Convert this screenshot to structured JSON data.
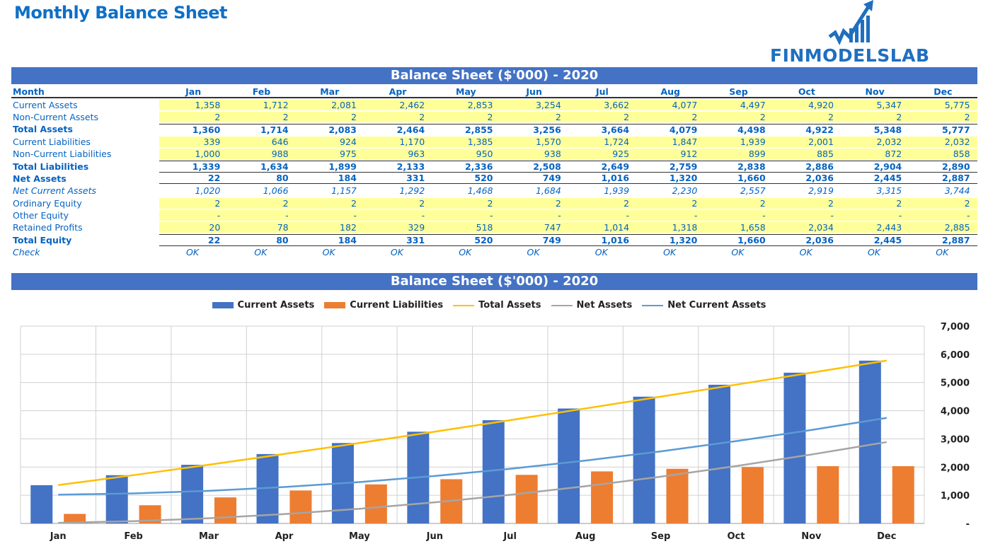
{
  "page": {
    "title": "Monthly Balance Sheet",
    "logo_text": "FINMODELSLAB"
  },
  "table": {
    "title": "Balance Sheet ($'000) - 2020",
    "header_label": "Month",
    "months": [
      "Jan",
      "Feb",
      "Mar",
      "Apr",
      "May",
      "Jun",
      "Jul",
      "Aug",
      "Sep",
      "Oct",
      "Nov",
      "Dec"
    ],
    "rows": [
      {
        "label": "Current Assets",
        "style": "yel",
        "values": [
          "1,358",
          "1,712",
          "2,081",
          "2,462",
          "2,853",
          "3,254",
          "3,662",
          "4,077",
          "4,497",
          "4,920",
          "5,347",
          "5,775"
        ]
      },
      {
        "label": "Non-Current Assets",
        "style": "yel",
        "values": [
          "2",
          "2",
          "2",
          "2",
          "2",
          "2",
          "2",
          "2",
          "2",
          "2",
          "2",
          "2"
        ]
      },
      {
        "label": "Total Assets",
        "style": "bold topb",
        "values": [
          "1,360",
          "1,714",
          "2,083",
          "2,464",
          "2,855",
          "3,256",
          "3,664",
          "4,079",
          "4,498",
          "4,922",
          "5,348",
          "5,777"
        ]
      },
      {
        "label": "Current Liabilities",
        "style": "yel",
        "values": [
          "339",
          "646",
          "924",
          "1,170",
          "1,385",
          "1,570",
          "1,724",
          "1,847",
          "1,939",
          "2,001",
          "2,032",
          "2,032"
        ]
      },
      {
        "label": "Non-Current Liabilities",
        "style": "yel",
        "values": [
          "1,000",
          "988",
          "975",
          "963",
          "950",
          "938",
          "925",
          "912",
          "899",
          "885",
          "872",
          "858"
        ]
      },
      {
        "label": "Total Liabilities",
        "style": "bold topb botb",
        "values": [
          "1,339",
          "1,634",
          "1,899",
          "2,133",
          "2,336",
          "2,508",
          "2,649",
          "2,759",
          "2,838",
          "2,886",
          "2,904",
          "2,890"
        ]
      },
      {
        "label": "Net Assets",
        "style": "bold botb",
        "values": [
          "22",
          "80",
          "184",
          "331",
          "520",
          "749",
          "1,016",
          "1,320",
          "1,660",
          "2,036",
          "2,445",
          "2,887"
        ]
      },
      {
        "label": "Net Current Assets",
        "style": "ital",
        "values": [
          "1,020",
          "1,066",
          "1,157",
          "1,292",
          "1,468",
          "1,684",
          "1,939",
          "2,230",
          "2,557",
          "2,919",
          "3,315",
          "3,744"
        ]
      },
      {
        "label": "Ordinary Equity",
        "style": "yel",
        "values": [
          "2",
          "2",
          "2",
          "2",
          "2",
          "2",
          "2",
          "2",
          "2",
          "2",
          "2",
          "2"
        ]
      },
      {
        "label": "Other Equity",
        "style": "yel",
        "values": [
          "-",
          "-",
          "-",
          "-",
          "-",
          "-",
          "-",
          "-",
          "-",
          "-",
          "-",
          "-"
        ]
      },
      {
        "label": "Retained Profits",
        "style": "yel",
        "values": [
          "20",
          "78",
          "182",
          "329",
          "518",
          "747",
          "1,014",
          "1,318",
          "1,658",
          "2,034",
          "2,443",
          "2,885"
        ]
      },
      {
        "label": "Total Equity",
        "style": "bold topb botb",
        "values": [
          "22",
          "80",
          "184",
          "331",
          "520",
          "749",
          "1,016",
          "1,320",
          "1,660",
          "2,036",
          "2,445",
          "2,887"
        ]
      },
      {
        "label": "Check",
        "style": "ital ok",
        "values": [
          "OK",
          "OK",
          "OK",
          "OK",
          "OK",
          "OK",
          "OK",
          "OK",
          "OK",
          "OK",
          "OK",
          "OK"
        ]
      }
    ]
  },
  "chart_title": "Balance Sheet ($'000) - 2020",
  "chart_data": {
    "type": "bar",
    "categories": [
      "Jan",
      "Feb",
      "Mar",
      "Apr",
      "May",
      "Jun",
      "Jul",
      "Aug",
      "Sep",
      "Oct",
      "Nov",
      "Dec"
    ],
    "ylim": [
      0,
      7000
    ],
    "yticks": [
      "-",
      "1,000",
      "2,000",
      "3,000",
      "4,000",
      "5,000",
      "6,000",
      "7,000"
    ],
    "grid": true,
    "legend": "top",
    "y_axis_side": "right",
    "series": [
      {
        "name": "Current Assets",
        "kind": "bar",
        "color": "#4472C4",
        "values": [
          1358,
          1712,
          2081,
          2462,
          2853,
          3254,
          3662,
          4077,
          4497,
          4920,
          5347,
          5775
        ]
      },
      {
        "name": "Current Liabilities",
        "kind": "bar",
        "color": "#ED7D31",
        "values": [
          339,
          646,
          924,
          1170,
          1385,
          1570,
          1724,
          1847,
          1939,
          2001,
          2032,
          2032
        ]
      },
      {
        "name": "Total Assets",
        "kind": "line",
        "color": "#FFC000",
        "values": [
          1360,
          1714,
          2083,
          2464,
          2855,
          3256,
          3664,
          4079,
          4498,
          4922,
          5348,
          5777
        ]
      },
      {
        "name": "Net Assets",
        "kind": "line",
        "color": "#A5A5A5",
        "values": [
          22,
          80,
          184,
          331,
          520,
          749,
          1016,
          1320,
          1660,
          2036,
          2445,
          2887
        ]
      },
      {
        "name": "Net Current Assets",
        "kind": "line",
        "color": "#5B9BD5",
        "values": [
          1020,
          1066,
          1157,
          1292,
          1468,
          1684,
          1939,
          2230,
          2557,
          2919,
          3315,
          3744
        ]
      }
    ]
  }
}
